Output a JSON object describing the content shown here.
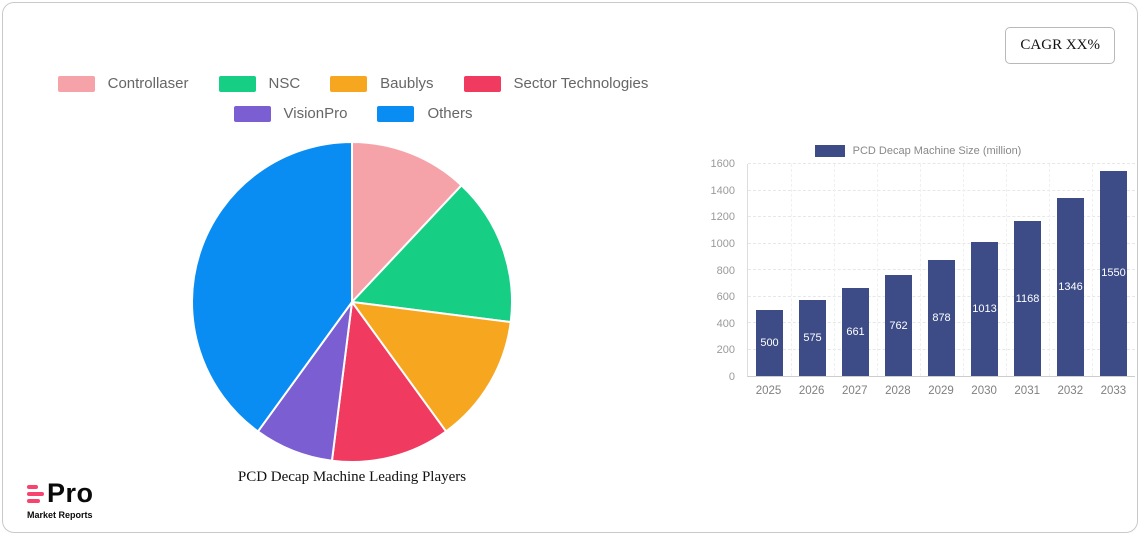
{
  "card": {
    "cagr_label": "CAGR XX%"
  },
  "logo": {
    "name": "Pro",
    "subtitle": "Market Reports",
    "accent_color": "#f8426f"
  },
  "chart_data": [
    {
      "type": "pie",
      "title": "PCD Decap Machine Leading Players",
      "labels": [
        "Controllaser",
        "NSC",
        "Baublys",
        "Sector Technologies",
        "VisionPro",
        "Others"
      ],
      "values": [
        12,
        15,
        13,
        12,
        8,
        40
      ],
      "colors": [
        "#f5a3a9",
        "#17ce85",
        "#f7a61f",
        "#f03a5f",
        "#7a5ed2",
        "#0a8df2"
      ],
      "legend_position": "top",
      "legend_rows": [
        4,
        2
      ],
      "start_angle_deg": 0,
      "direction": "clockwise"
    },
    {
      "type": "bar",
      "title": "PCD Decap Machine Size (million)",
      "categories": [
        "2025",
        "2026",
        "2027",
        "2028",
        "2029",
        "2030",
        "2031",
        "2032",
        "2033"
      ],
      "values": [
        500,
        575,
        661,
        762,
        878,
        1013,
        1168,
        1346,
        1550
      ],
      "ylim": [
        0,
        1600
      ],
      "ytick_step": 200,
      "bar_color": "#3d4c87",
      "grid": true,
      "legend_position": "top"
    }
  ]
}
